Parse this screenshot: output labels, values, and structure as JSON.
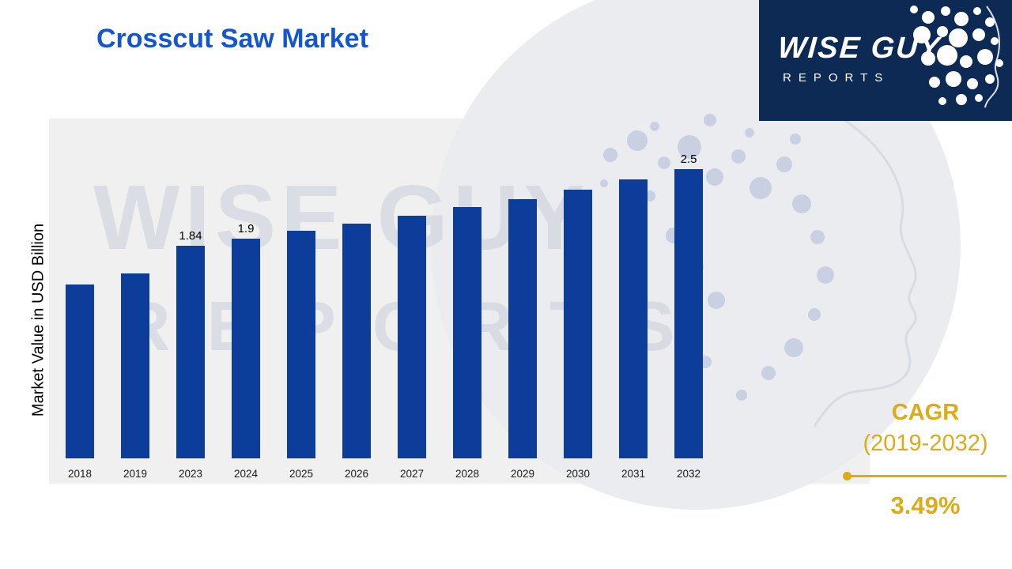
{
  "title": "Crosscut Saw Market",
  "ylabel": "Market Value in USD Billion",
  "watermark": {
    "line1": "WISE GUY",
    "line2": "REPORTS"
  },
  "logo": {
    "line1": "WISE GUY",
    "line2": "REPORTS"
  },
  "cagr": {
    "label": "CAGR",
    "range": "(2019-2032)",
    "value": "3.49%"
  },
  "colors": {
    "bar": "#0d3d9b",
    "title": "#1456cb",
    "panel": "#0d2a55",
    "accent": "#ddab17",
    "plot_background": "#f0f0f1",
    "watermark": "#c9ced9"
  },
  "chart_data": {
    "type": "bar",
    "title": "Crosscut Saw Market",
    "xlabel": "",
    "ylabel": "Market Value in USD Billion",
    "categories": [
      "2018",
      "2019",
      "2023",
      "2024",
      "2025",
      "2026",
      "2027",
      "2028",
      "2029",
      "2030",
      "2031",
      "2032"
    ],
    "values": [
      1.5,
      1.6,
      1.84,
      1.9,
      1.97,
      2.03,
      2.1,
      2.17,
      2.24,
      2.32,
      2.41,
      2.5
    ],
    "labels": [
      "",
      "",
      "1.84",
      "1.9",
      "",
      "",
      "",
      "",
      "",
      "",
      "",
      "2.5"
    ],
    "unit": "USD Billion",
    "ylim": [
      0,
      2.75
    ],
    "grid": false,
    "legend": false,
    "bar_color": "#0d3d9b"
  }
}
